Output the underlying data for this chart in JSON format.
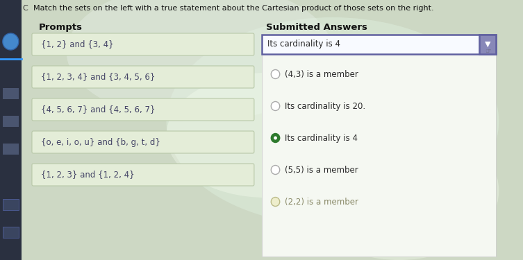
{
  "title": "Match the sets on the left with a true statement about the Cartesian product of those sets on the right.",
  "left_header": "Prompts",
  "right_header": "Submitted Answers",
  "prompts": [
    "{1, 2} and {3, 4}",
    "{1, 2, 3, 4} and {3, 4, 5, 6}",
    "{4, 5, 6, 7} and {4, 5, 6, 7}",
    "{o, e, i, o, u} and {b, g, t, d}",
    "{1, 2, 3} and {1, 2, 4}"
  ],
  "answers": [
    "(4,3) is a member",
    "Its cardinality is 20.",
    "Its cardinality is 4",
    "(5,5) is a member",
    "(2,2) is a member"
  ],
  "selected_answer_text": "Its cardinality is 4",
  "filled_radio_index": 2,
  "bg_color": "#cdd8c4",
  "left_box_color": "#e4edd8",
  "left_box_border": "#b8c8a8",
  "right_box_color": "#f0f4ec",
  "right_panel_color": "#f5f8f2",
  "dropdown_border_color": "#6060a0",
  "dropdown_bg": "#f8faff",
  "radio_filled_color": "#2d7a2d",
  "radio_empty_color": "#aaaaaa",
  "radio_last_color": "#ccccaa",
  "text_color": "#2a2a2a",
  "prompt_text_color": "#444466",
  "header_color": "#111111",
  "title_color": "#111111",
  "sidebar_dark": "#2a3040",
  "sidebar_mid": "#6070a0",
  "sidebar_light": "#8898b8",
  "arrow_bg": "#8888b8",
  "arrow_color": "#ffffff",
  "cursor_color": "#555555"
}
